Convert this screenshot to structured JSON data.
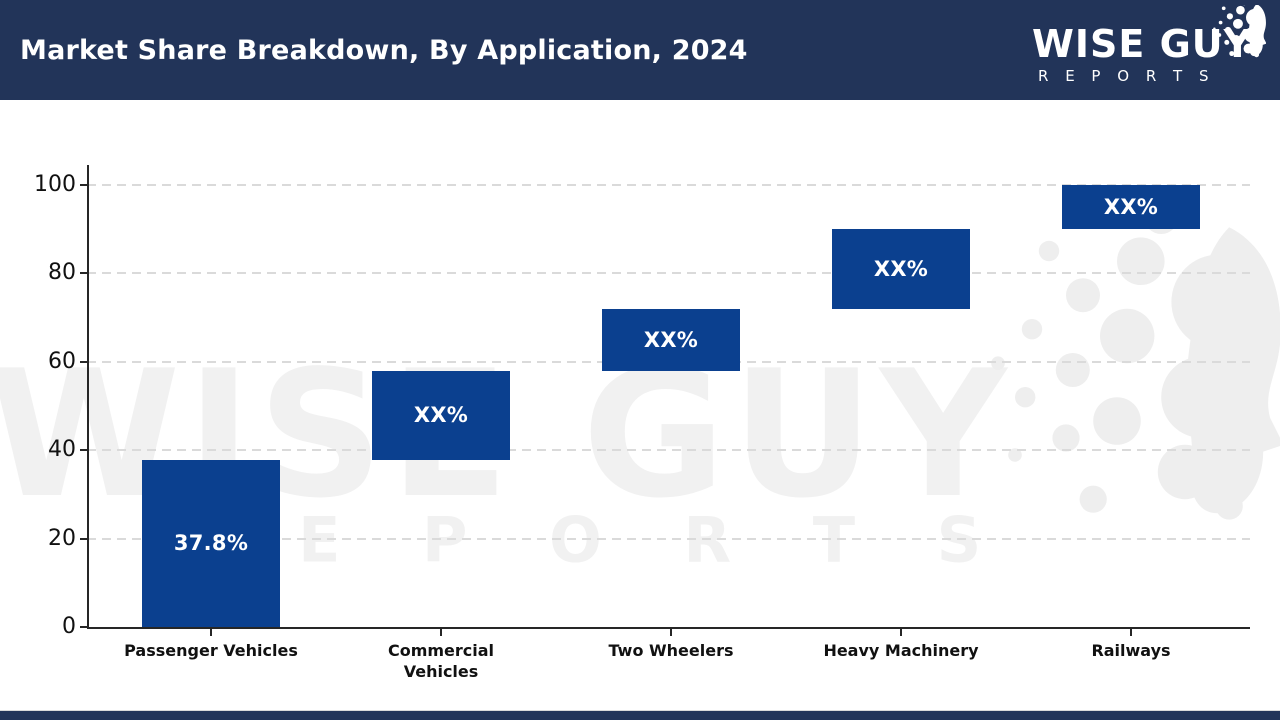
{
  "header": {
    "title": "Market Share Breakdown, By Application, 2024",
    "logo": {
      "line1": "WISE GUY",
      "line2": "R E P O R T S"
    }
  },
  "watermark": {
    "line1": "WISE GUY",
    "line2": "R E P O R T S"
  },
  "colors": {
    "header_bg": "#223459",
    "bar": "#0b408f",
    "grid": "#dadada",
    "axis": "#262626",
    "bar_label_text": "#ffffff",
    "watermark_gray": "#f1f1f1"
  },
  "chart_data": {
    "type": "bar",
    "subtype": "waterfall",
    "title": "Market Share Breakdown, By Application, 2024",
    "categories": [
      "Passenger Vehicles",
      "Commercial Vehicles",
      "Two Wheelers",
      "Heavy Machinery",
      "Railways"
    ],
    "segments": [
      {
        "category": "Passenger Vehicles",
        "tick_label": "Passenger Vehicles",
        "start": 0,
        "end": 37.8,
        "label": "37.8%"
      },
      {
        "category": "Commercial Vehicles",
        "tick_label": "Commercial\nVehicles",
        "start": 37.8,
        "end": 58,
        "label": "XX%"
      },
      {
        "category": "Two Wheelers",
        "tick_label": "Two Wheelers",
        "start": 58,
        "end": 72,
        "label": "XX%"
      },
      {
        "category": "Heavy Machinery",
        "tick_label": "Heavy Machinery",
        "start": 72,
        "end": 90,
        "label": "XX%"
      },
      {
        "category": "Railways",
        "tick_label": "Railways",
        "start": 90,
        "end": 100,
        "label": "XX%"
      }
    ],
    "y_ticks": [
      0,
      20,
      40,
      60,
      80,
      100
    ],
    "ylim": [
      0,
      104.5
    ],
    "xlabel": "",
    "ylabel": "",
    "grid": "horizontal-dashed",
    "legend": "none"
  }
}
